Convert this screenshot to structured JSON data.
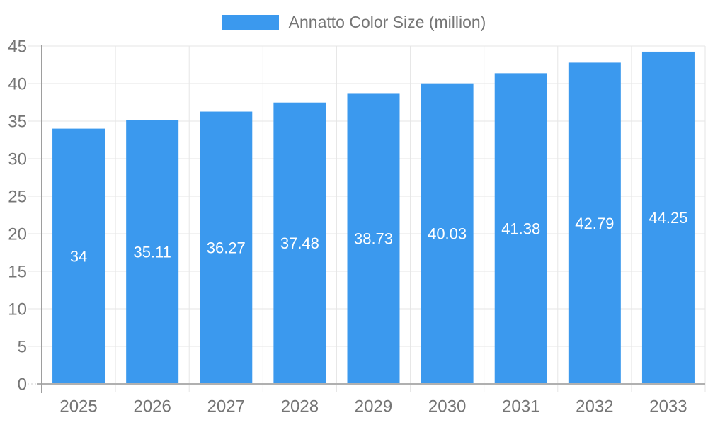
{
  "legend": {
    "label": "Annatto Color Size (million)"
  },
  "chart_data": {
    "type": "bar",
    "title": "Annatto Color Size (million)",
    "categories": [
      "2025",
      "2026",
      "2027",
      "2028",
      "2029",
      "2030",
      "2031",
      "2032",
      "2033"
    ],
    "values": [
      34,
      35.11,
      36.27,
      37.48,
      38.73,
      40.03,
      41.38,
      42.79,
      44.25
    ],
    "bar_labels": [
      "34",
      "35.11",
      "36.27",
      "37.48",
      "38.73",
      "40.03",
      "41.38",
      "42.79",
      "44.25"
    ],
    "xlabel": "",
    "ylabel": "",
    "ylim": [
      0,
      45
    ],
    "yticks": [
      0,
      5,
      10,
      15,
      20,
      25,
      30,
      35,
      40,
      45
    ],
    "grid": true,
    "legend_position": "top",
    "colors": {
      "bar": "#3B99EE",
      "grid": "#E6E6E6",
      "tick": "#CFCFCF",
      "x_axis": "#B0B0B0",
      "y_axis": "#9E9E9E",
      "label_text": "#757575",
      "bar_label_text": "#FFFFFF",
      "background": "#FFFFFF"
    }
  }
}
